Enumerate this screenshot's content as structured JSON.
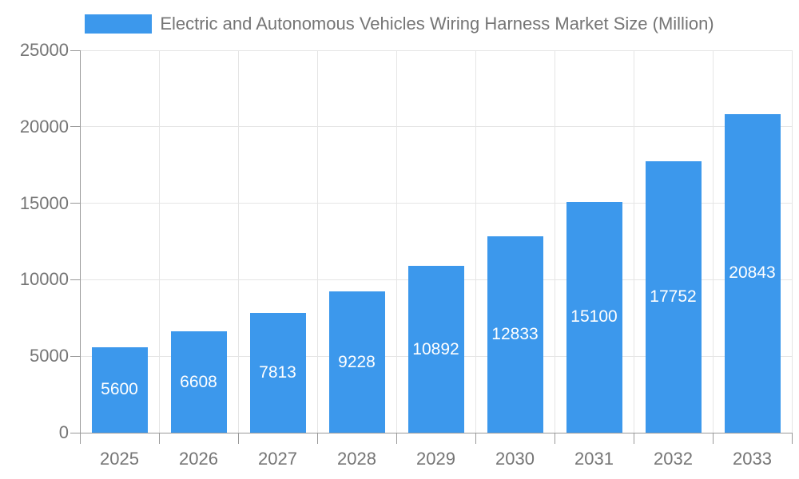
{
  "chart_data": {
    "type": "bar",
    "title": "Electric and Autonomous Vehicles Wiring Harness Market Size (Million)",
    "categories": [
      "2025",
      "2026",
      "2027",
      "2028",
      "2029",
      "2030",
      "2031",
      "2032",
      "2033"
    ],
    "values": [
      5600,
      6608,
      7813,
      9228,
      10892,
      12833,
      15100,
      17752,
      20843
    ],
    "xlabel": "",
    "ylabel": "",
    "ylim": [
      0,
      25000
    ],
    "yticks": [
      0,
      5000,
      10000,
      15000,
      20000,
      25000
    ],
    "grid": true,
    "legend_position": "top",
    "colors": {
      "bar": "#3C98EC",
      "bar_value_text": "#ffffff",
      "axis_text": "#757575",
      "axis_line": "#999999",
      "gridline": "#E5E5E5",
      "background": "#ffffff"
    }
  }
}
